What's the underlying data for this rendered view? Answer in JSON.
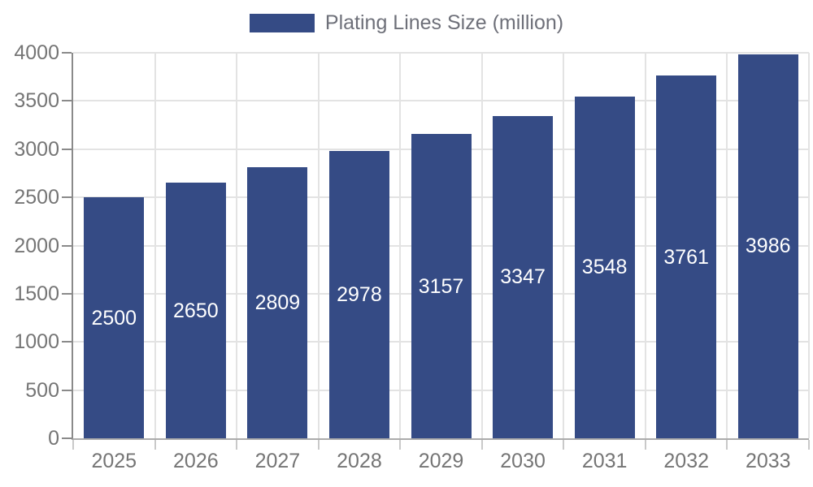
{
  "legend": {
    "label": "Plating Lines Size (million)",
    "swatch_color": "#354B85"
  },
  "chart_data": {
    "type": "bar",
    "title": "Plating Lines Size (million)",
    "series_name": "Plating Lines Size (million)",
    "categories": [
      "2025",
      "2026",
      "2027",
      "2028",
      "2029",
      "2030",
      "2031",
      "2032",
      "2033"
    ],
    "values": [
      2500,
      2650,
      2809,
      2978,
      3157,
      3347,
      3548,
      3761,
      3986
    ],
    "xlabel": "",
    "ylabel": "",
    "ylim": [
      0,
      4000
    ],
    "yticks": [
      0,
      500,
      1000,
      1500,
      2000,
      2500,
      3000,
      3500,
      4000
    ],
    "grid": true,
    "legend_position": "top-center",
    "bar_color": "#354B85",
    "bar_label_color": "#FFFFFF",
    "axis_text_color": "#757575",
    "legend_text_color": "#6E7079"
  }
}
